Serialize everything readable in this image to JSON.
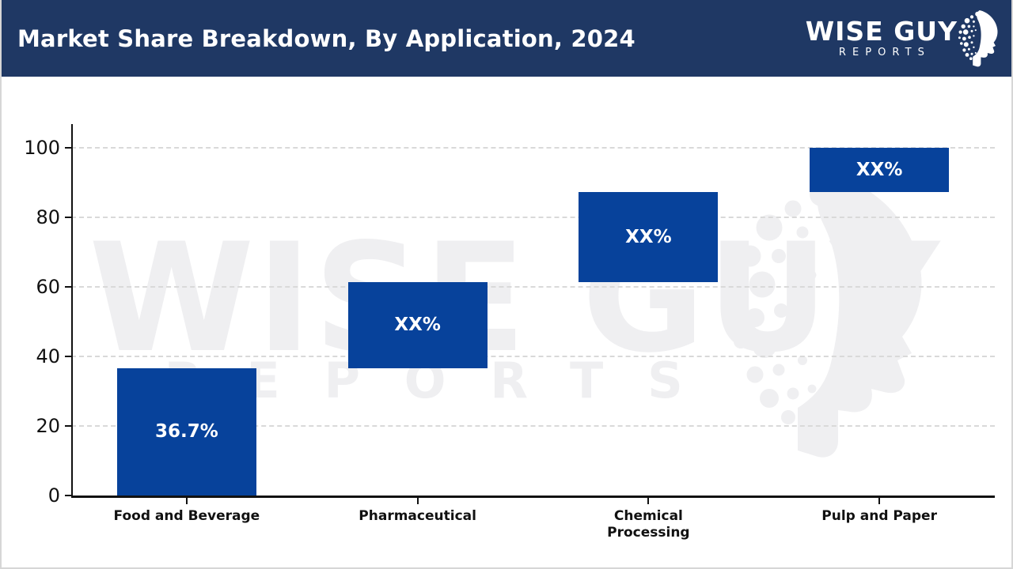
{
  "header": {
    "title": "Market Share Breakdown, By Application, 2024",
    "logo": {
      "line1": "WISE GUY",
      "line2": "REPORTS"
    }
  },
  "watermark": {
    "line1": "WISE GUY",
    "line2": "REPORTS"
  },
  "colors": {
    "header_bg": "#1f3864",
    "bar": "#07429b",
    "grid": "#d9d9d9",
    "axis": "#111111",
    "bar_label": "#ffffff",
    "watermark": "#efeff1"
  },
  "chart_data": {
    "type": "bar",
    "subtype": "waterfall",
    "title": "Market Share Breakdown, By Application, 2024",
    "categories": [
      "Food and Beverage",
      "Pharmaceutical",
      "Chemical\nProcessing",
      "Pulp and Paper"
    ],
    "segments": [
      {
        "category": "Food and Beverage",
        "start": 0,
        "end": 36.7,
        "label": "36.7%"
      },
      {
        "category": "Pharmaceutical",
        "start": 36.7,
        "end": 61.3,
        "label": "XX%"
      },
      {
        "category": "Chemical\nProcessing",
        "start": 61.3,
        "end": 87.3,
        "label": "XX%"
      },
      {
        "category": "Pulp and Paper",
        "start": 87.3,
        "end": 100,
        "label": "XX%"
      }
    ],
    "yticks": [
      0,
      20,
      40,
      60,
      80,
      100
    ],
    "ylim": [
      0,
      100
    ],
    "xlabel": "",
    "ylabel": "",
    "grid": true,
    "legend": false
  }
}
